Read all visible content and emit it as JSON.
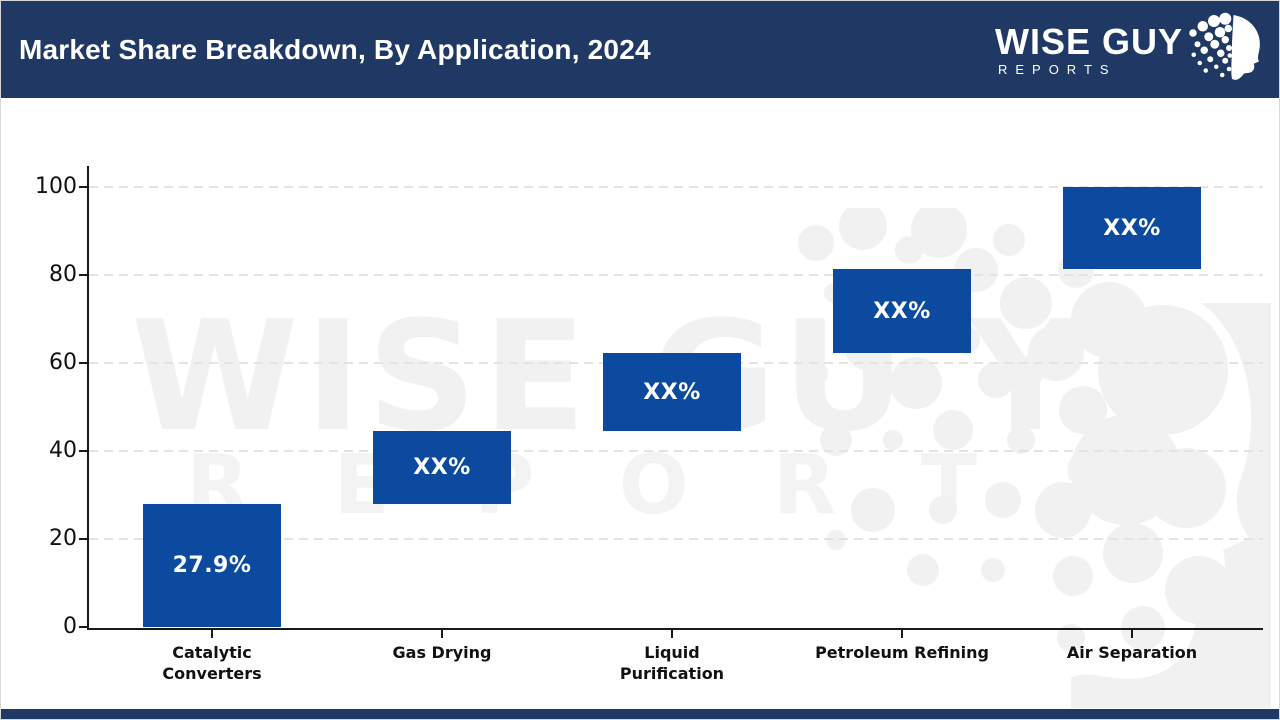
{
  "header": {
    "title": "Market Share Breakdown, By Application, 2024",
    "logo": {
      "line1": "WISE GUY",
      "line2": "REPORTS"
    }
  },
  "watermark": {
    "line1": "WISE GU Y",
    "line2": "R E P O R T S"
  },
  "colors": {
    "header_bg": "#1f3864",
    "footer_bg": "#1f3864",
    "bar": "#0b4a9e",
    "bar_label": "#ffffff",
    "grid": "#e3e3e3",
    "axis": "#1a1a1a",
    "watermark": "#f1f1f1"
  },
  "chart_data": {
    "type": "bar",
    "subtype": "floating-waterfall-segments",
    "title": "Market Share Breakdown, By Application, 2024",
    "categories": [
      "Catalytic\nConverters",
      "Gas Drying",
      "Liquid\nPurification",
      "Petroleum Refining",
      "Air Separation"
    ],
    "bars": [
      {
        "category": "Catalytic Converters",
        "start": 0,
        "end": 27.9,
        "label": "27.9%"
      },
      {
        "category": "Gas Drying",
        "start": 27.9,
        "end": 44.5,
        "label": "XX%"
      },
      {
        "category": "Liquid Purification",
        "start": 44.5,
        "end": 62.2,
        "label": "XX%"
      },
      {
        "category": "Petroleum Refining",
        "start": 62.2,
        "end": 81.3,
        "label": "XX%"
      },
      {
        "category": "Air Separation",
        "start": 81.3,
        "end": 100,
        "label": "XX%"
      }
    ],
    "ylim": [
      0,
      105
    ],
    "yticks": [
      0,
      20,
      40,
      60,
      80,
      100
    ],
    "xlabel": "",
    "ylabel": "",
    "grid": "horizontal dashed",
    "legend": "none"
  }
}
